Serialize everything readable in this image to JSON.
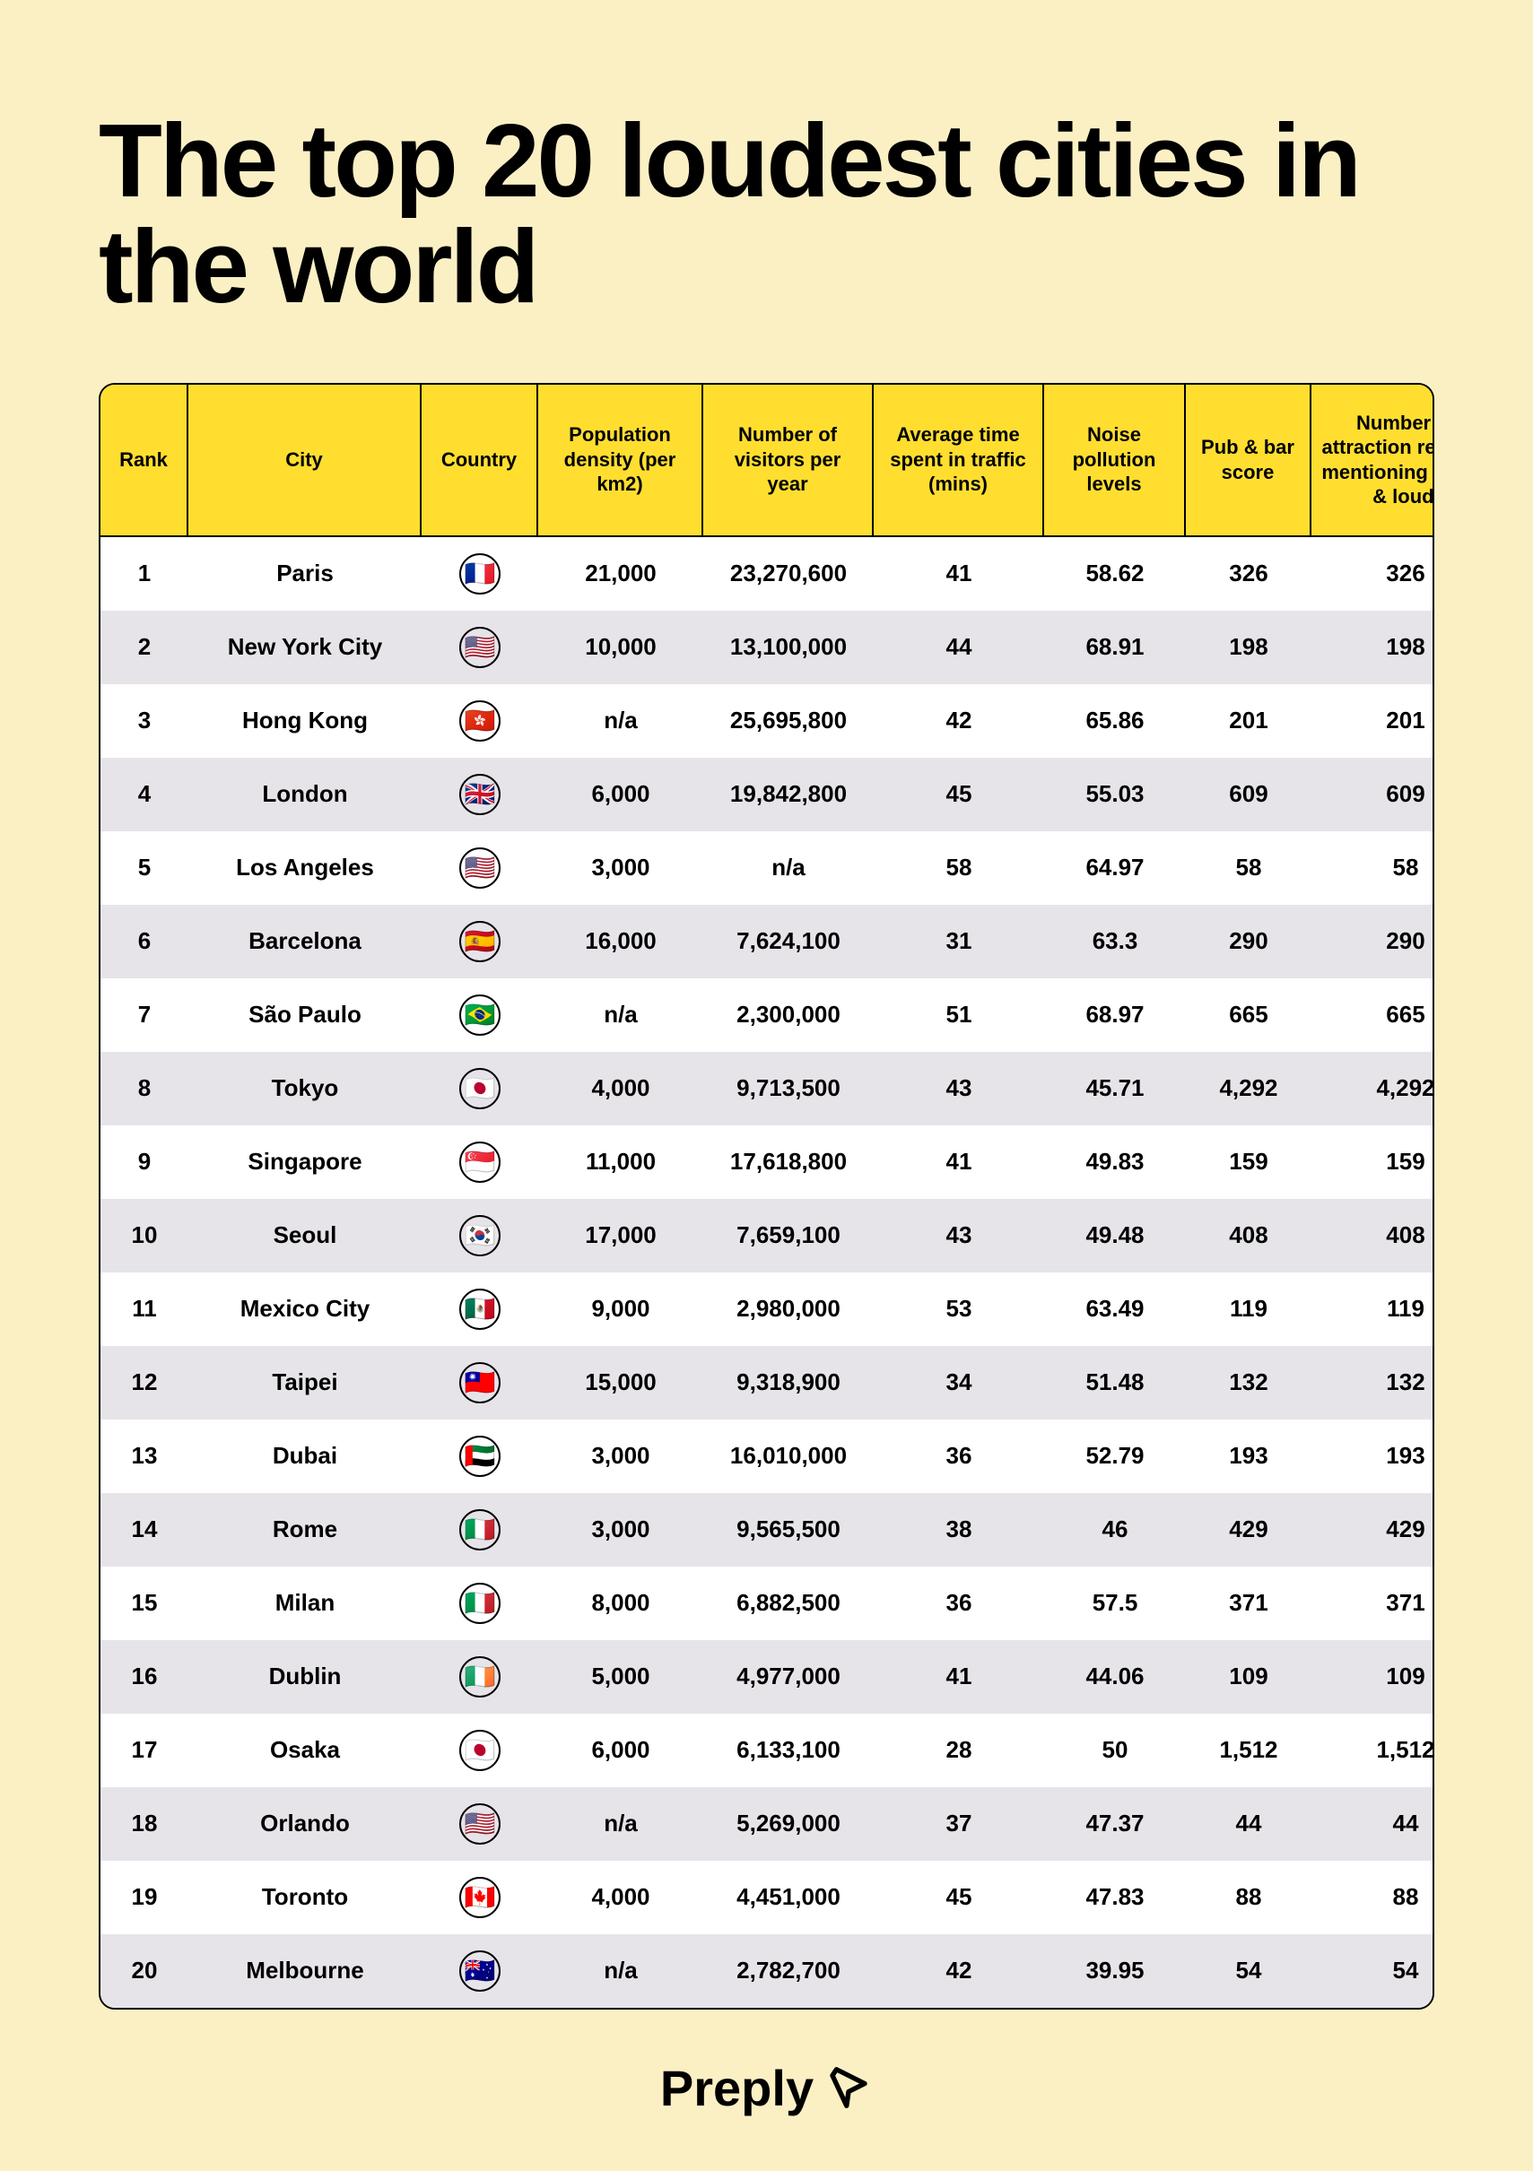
{
  "layout": {
    "page_bg": "#fbf0c4",
    "title_fontsize": 116,
    "header_bg": "#ffde30",
    "header_fontsize": 22,
    "cell_fontsize": 26,
    "row_even_bg": "#ffffff",
    "row_odd_bg": "#e6e4e9",
    "border_color": "#000000",
    "col_widths": "98px 260px 130px 184px 190px 190px 158px 140px 210px",
    "footer_fontsize": 56
  },
  "title": "The top 20 loudest cities in the world",
  "footer_brand": "Preply",
  "columns": [
    "Rank",
    "City",
    "Country",
    "Population density (per km2)",
    "Number of visitors per year",
    "Average time spent in traffic (mins)",
    "Noise pollution levels",
    "Pub & bar score",
    "Number of attraction reviews mentioning 'noisy & loud'"
  ],
  "rows": [
    {
      "rank": "1",
      "city": "Paris",
      "flag": "🇫🇷",
      "density": "21,000",
      "visitors": "23,270,600",
      "traffic": "41",
      "noise": "58.62",
      "pubs": "326",
      "reviews": "326"
    },
    {
      "rank": "2",
      "city": "New York City",
      "flag": "🇺🇸",
      "density": "10,000",
      "visitors": "13,100,000",
      "traffic": "44",
      "noise": "68.91",
      "pubs": "198",
      "reviews": "198"
    },
    {
      "rank": "3",
      "city": "Hong Kong",
      "flag": "🇭🇰",
      "density": "n/a",
      "visitors": "25,695,800",
      "traffic": "42",
      "noise": "65.86",
      "pubs": "201",
      "reviews": "201"
    },
    {
      "rank": "4",
      "city": "London",
      "flag": "🇬🇧",
      "density": "6,000",
      "visitors": "19,842,800",
      "traffic": "45",
      "noise": "55.03",
      "pubs": "609",
      "reviews": "609"
    },
    {
      "rank": "5",
      "city": "Los Angeles",
      "flag": "🇺🇸",
      "density": "3,000",
      "visitors": "n/a",
      "traffic": "58",
      "noise": "64.97",
      "pubs": "58",
      "reviews": "58"
    },
    {
      "rank": "6",
      "city": "Barcelona",
      "flag": "🇪🇸",
      "density": "16,000",
      "visitors": "7,624,100",
      "traffic": "31",
      "noise": "63.3",
      "pubs": "290",
      "reviews": "290"
    },
    {
      "rank": "7",
      "city": "São Paulo",
      "flag": "🇧🇷",
      "density": "n/a",
      "visitors": "2,300,000",
      "traffic": "51",
      "noise": "68.97",
      "pubs": "665",
      "reviews": "665"
    },
    {
      "rank": "8",
      "city": "Tokyo",
      "flag": "🇯🇵",
      "density": "4,000",
      "visitors": "9,713,500",
      "traffic": "43",
      "noise": "45.71",
      "pubs": "4,292",
      "reviews": "4,292"
    },
    {
      "rank": "9",
      "city": "Singapore",
      "flag": "🇸🇬",
      "density": "11,000",
      "visitors": "17,618,800",
      "traffic": "41",
      "noise": "49.83",
      "pubs": "159",
      "reviews": "159"
    },
    {
      "rank": "10",
      "city": "Seoul",
      "flag": "🇰🇷",
      "density": "17,000",
      "visitors": "7,659,100",
      "traffic": "43",
      "noise": "49.48",
      "pubs": "408",
      "reviews": "408"
    },
    {
      "rank": "11",
      "city": "Mexico City",
      "flag": "🇲🇽",
      "density": "9,000",
      "visitors": "2,980,000",
      "traffic": "53",
      "noise": "63.49",
      "pubs": "119",
      "reviews": "119"
    },
    {
      "rank": "12",
      "city": "Taipei",
      "flag": "🇹🇼",
      "density": "15,000",
      "visitors": "9,318,900",
      "traffic": "34",
      "noise": "51.48",
      "pubs": "132",
      "reviews": "132"
    },
    {
      "rank": "13",
      "city": "Dubai",
      "flag": "🇦🇪",
      "density": "3,000",
      "visitors": "16,010,000",
      "traffic": "36",
      "noise": "52.79",
      "pubs": "193",
      "reviews": "193"
    },
    {
      "rank": "14",
      "city": "Rome",
      "flag": "🇮🇹",
      "density": "3,000",
      "visitors": "9,565,500",
      "traffic": "38",
      "noise": "46",
      "pubs": "429",
      "reviews": "429"
    },
    {
      "rank": "15",
      "city": "Milan",
      "flag": "🇮🇹",
      "density": "8,000",
      "visitors": "6,882,500",
      "traffic": "36",
      "noise": "57.5",
      "pubs": "371",
      "reviews": "371"
    },
    {
      "rank": "16",
      "city": "Dublin",
      "flag": "🇮🇪",
      "density": "5,000",
      "visitors": "4,977,000",
      "traffic": "41",
      "noise": "44.06",
      "pubs": "109",
      "reviews": "109"
    },
    {
      "rank": "17",
      "city": "Osaka",
      "flag": "🇯🇵",
      "density": "6,000",
      "visitors": "6,133,100",
      "traffic": "28",
      "noise": "50",
      "pubs": "1,512",
      "reviews": "1,512"
    },
    {
      "rank": "18",
      "city": "Orlando",
      "flag": "🇺🇸",
      "density": "n/a",
      "visitors": "5,269,000",
      "traffic": "37",
      "noise": "47.37",
      "pubs": "44",
      "reviews": "44"
    },
    {
      "rank": "19",
      "city": "Toronto",
      "flag": "🇨🇦",
      "density": "4,000",
      "visitors": "4,451,000",
      "traffic": "45",
      "noise": "47.83",
      "pubs": "88",
      "reviews": "88"
    },
    {
      "rank": "20",
      "city": "Melbourne",
      "flag": "🇦🇺",
      "density": "n/a",
      "visitors": "2,782,700",
      "traffic": "42",
      "noise": "39.95",
      "pubs": "54",
      "reviews": "54"
    }
  ]
}
